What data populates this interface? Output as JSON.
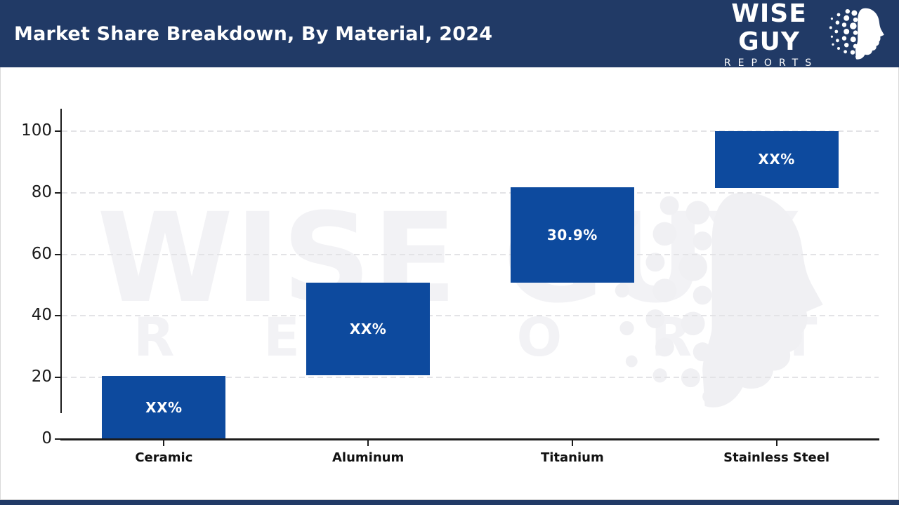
{
  "header": {
    "title": "Market Share Breakdown, By Material, 2024",
    "logo": {
      "line1": "WISE GUY",
      "line2": "REPORTS"
    }
  },
  "watermark": {
    "line1": "WISE GUY",
    "line2": "R E P O R T S"
  },
  "footer": {},
  "chart_data": {
    "type": "bar",
    "subtype": "waterfall-floating-bars",
    "title": "Market Share Breakdown, By Material, 2024",
    "categories": [
      "Ceramic",
      "Aluminum",
      "Titanium",
      "Stainless Steel"
    ],
    "segments": [
      {
        "category": "Ceramic",
        "start": 0,
        "end": 20.5,
        "label": "XX%"
      },
      {
        "category": "Aluminum",
        "start": 20.7,
        "end": 50.8,
        "label": "XX%"
      },
      {
        "category": "Titanium",
        "start": 50.9,
        "end": 81.8,
        "label": "30.9%"
      },
      {
        "category": "Stainless Steel",
        "start": 81.6,
        "end": 100,
        "label": "XX%"
      }
    ],
    "yticks": [
      0,
      20,
      40,
      60,
      80,
      100
    ],
    "ylim": [
      0,
      107
    ],
    "xlabel": "",
    "ylabel": "",
    "grid": "dashed-horizontal",
    "legend_position": "none",
    "bar_color": "#0d4a9e",
    "bar_label_color": "#ffffff"
  },
  "colors": {
    "header_bg": "#213a66",
    "footer_bg": "#213a66",
    "bar": "#0d4a9e",
    "grid": "#e3e3e6",
    "axis": "#1c1c1c",
    "watermark": "#f2f2f5"
  }
}
